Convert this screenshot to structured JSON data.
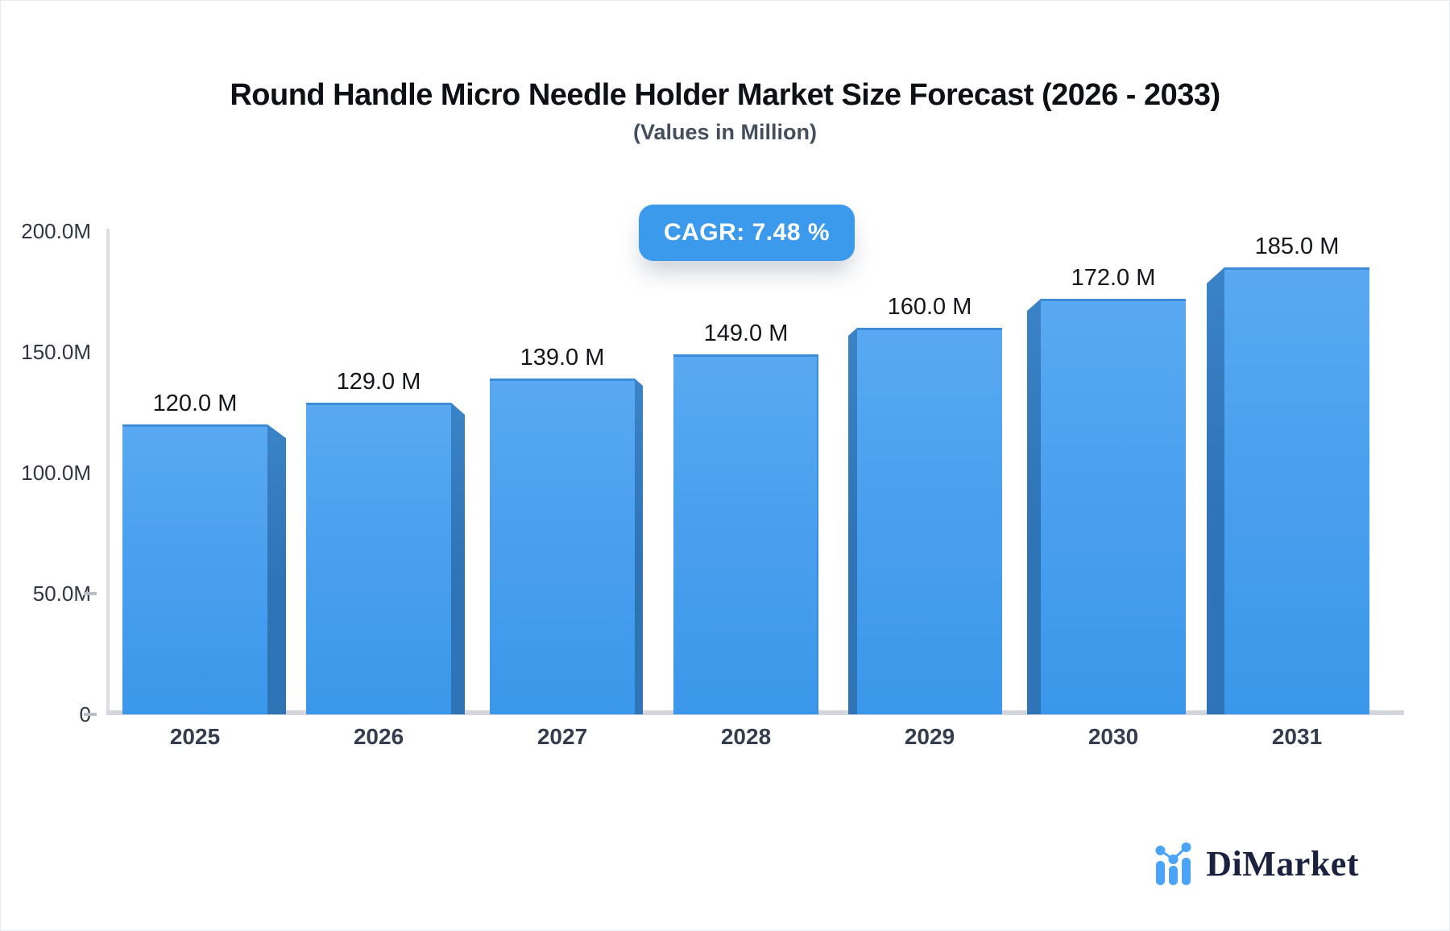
{
  "header": {
    "title": "Round Handle Micro Needle Holder Market Size Forecast (2026 - 2033)",
    "subtitle": "(Values in Million)"
  },
  "badge": {
    "label": "CAGR: 7.48 %"
  },
  "logo": {
    "text": "DiMarket",
    "icon": "bar-chart-trend-icon"
  },
  "chart_data": {
    "type": "bar",
    "title": "Round Handle Micro Needle Holder Market Size Forecast (2026 - 2033)",
    "subtitle": "(Values in Million)",
    "categories": [
      "2025",
      "2026",
      "2027",
      "2028",
      "2029",
      "2030",
      "2031"
    ],
    "values": [
      120.0,
      129.0,
      139.0,
      149.0,
      160.0,
      172.0,
      185.0
    ],
    "bar_labels": [
      "120.0 M",
      "129.0 M",
      "139.0 M",
      "149.0 M",
      "160.0 M",
      "172.0 M",
      "185.0 M"
    ],
    "annotation": "CAGR: 7.48 %",
    "ylim": [
      0,
      200
    ],
    "yticks": [
      {
        "label": "200.0M",
        "value": 200
      },
      {
        "label": "150.0M",
        "value": 150
      },
      {
        "label": "100.0M",
        "value": 100
      },
      {
        "label": "50.0M",
        "value": 50
      },
      {
        "label": "0",
        "value": 0
      }
    ],
    "grid": false,
    "legend": false,
    "xlabel": "",
    "ylabel": "",
    "colors": {
      "bar_face": "#4aa0ee",
      "bar_side": "#2f78b9",
      "bar_edge": "#3e8cd8",
      "badge": "#3b9aec",
      "axis": "#d6dade",
      "title_text": "#0d1015",
      "logo_blue": "#4ba4f8",
      "logo_navy": "#1a2240"
    }
  }
}
